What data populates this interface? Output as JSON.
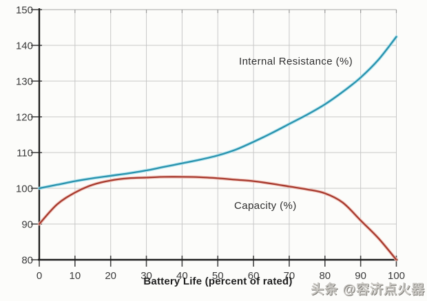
{
  "chart_data": {
    "type": "line",
    "title": "",
    "xlabel": "Battery Life (percent of rated)",
    "ylabel": "",
    "xlim": [
      0,
      100
    ],
    "ylim": [
      80,
      150
    ],
    "x_ticks": [
      0,
      10,
      20,
      30,
      40,
      50,
      60,
      70,
      80,
      90,
      100
    ],
    "y_ticks": [
      80,
      90,
      100,
      110,
      120,
      130,
      140,
      150
    ],
    "grid": true,
    "legend_position": "inline-annotations",
    "x": [
      0,
      5,
      10,
      15,
      20,
      25,
      30,
      35,
      40,
      45,
      50,
      55,
      60,
      65,
      70,
      75,
      80,
      85,
      90,
      95,
      100
    ],
    "series": [
      {
        "name": "Internal Resistance (%)",
        "color": "#2992ad",
        "halo": "#a9e1ec",
        "values": [
          100,
          101,
          102,
          102.8,
          103.5,
          104.2,
          105,
          106,
          107,
          108,
          109.2,
          110.8,
          113,
          115.4,
          118,
          120.6,
          123.5,
          127,
          131,
          136,
          142.4
        ]
      },
      {
        "name": "Capacity (%)",
        "color": "#a73a2e",
        "halo": "#f0c0b6",
        "values": [
          90,
          95.5,
          98.8,
          101,
          102.2,
          102.8,
          103,
          103.2,
          103.2,
          103.1,
          102.8,
          102.4,
          102,
          101.3,
          100.5,
          99.7,
          98.6,
          96,
          91,
          86,
          80
        ]
      }
    ]
  },
  "annotations": {
    "internal_resistance": "Internal Resistance (%)",
    "capacity": "Capacity (%)"
  },
  "watermark": {
    "text": "头条 @容济点火器"
  },
  "colors": {
    "background": "#fcfcfa",
    "grid": "#c7c7c7",
    "axis": "#1e1e1e",
    "tick_text": "#3a3a3a",
    "top_border": "#b5b5b5"
  }
}
